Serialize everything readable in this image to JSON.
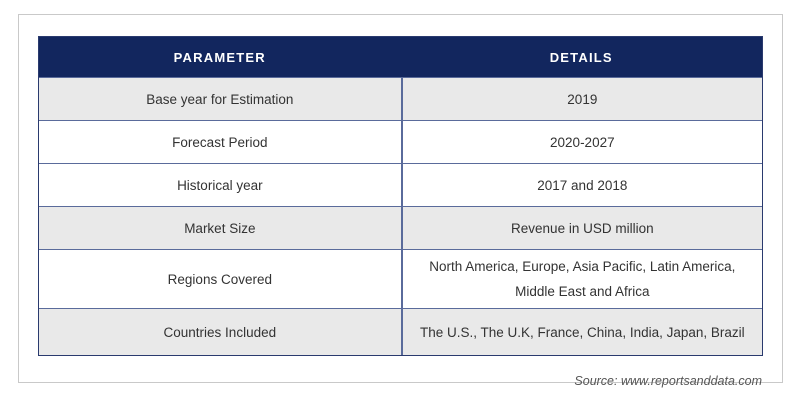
{
  "chart_data": {
    "type": "table",
    "title": "",
    "columns": [
      "PARAMETER",
      "DETAILS"
    ],
    "rows": [
      {
        "parameter": "Base year for Estimation",
        "details": "2019",
        "shaded": true
      },
      {
        "parameter": "Forecast Period",
        "details": "2020-2027",
        "shaded": false
      },
      {
        "parameter": "Historical year",
        "details": "2017 and 2018",
        "shaded": false
      },
      {
        "parameter": "Market Size",
        "details": "Revenue in USD million",
        "shaded": true
      },
      {
        "parameter": "Regions Covered",
        "details": "North America, Europe, Asia Pacific, Latin America, Middle East and Africa",
        "shaded": false
      },
      {
        "parameter": "Countries Included",
        "details": "The U.S., The  U.K, France, China, India, Japan, Brazil",
        "shaded": true
      }
    ],
    "layout": "two-column parameter/details summary table with dark navy header"
  },
  "header": {
    "col_parameter": "PARAMETER",
    "col_details": "DETAILS"
  },
  "source": {
    "label": "Source: www.reportsanddata.com"
  },
  "colors": {
    "header_bg": "#12265e",
    "header_text": "#ffffff",
    "row_shaded": "#e9e9e9",
    "row_plain": "#ffffff",
    "table_outline": "#2a3a6e",
    "inner_border": "#5a6b9b",
    "cell_text": "#333333",
    "source_text": "#555555",
    "card_border": "#c9c9c9"
  }
}
